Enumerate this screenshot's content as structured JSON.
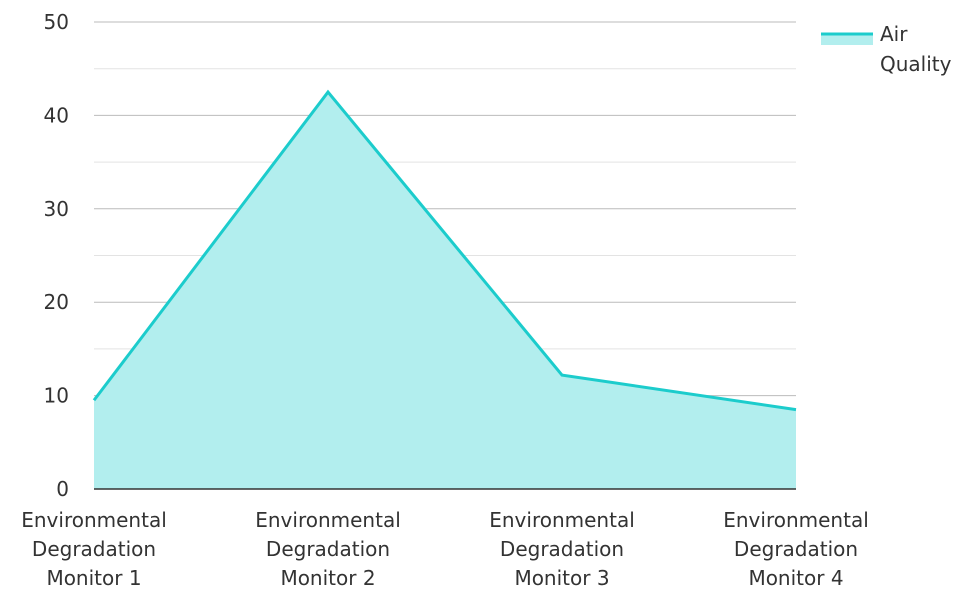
{
  "chart_data": {
    "type": "area",
    "categories": [
      [
        "Environmental",
        "Degradation",
        "Monitor 1"
      ],
      [
        "Environmental",
        "Degradation",
        "Monitor 2"
      ],
      [
        "Environmental",
        "Degradation",
        "Monitor 3"
      ],
      [
        "Environmental",
        "Degradation",
        "Monitor 4"
      ]
    ],
    "series": [
      {
        "name": [
          "Air",
          "Quality"
        ],
        "values": [
          9.5,
          42.5,
          12.2,
          8.5
        ]
      }
    ],
    "ylim": [
      0,
      50
    ],
    "yticks": [
      "0",
      "10",
      "20",
      "30",
      "40",
      "50"
    ],
    "grid": true,
    "legend_position": "top-right",
    "colors": {
      "line": "#1ccccc",
      "fill": "#b2eeee",
      "grid_major": "#bbbbbb",
      "grid_minor": "#e3e3e3",
      "axis": "#333333"
    }
  }
}
